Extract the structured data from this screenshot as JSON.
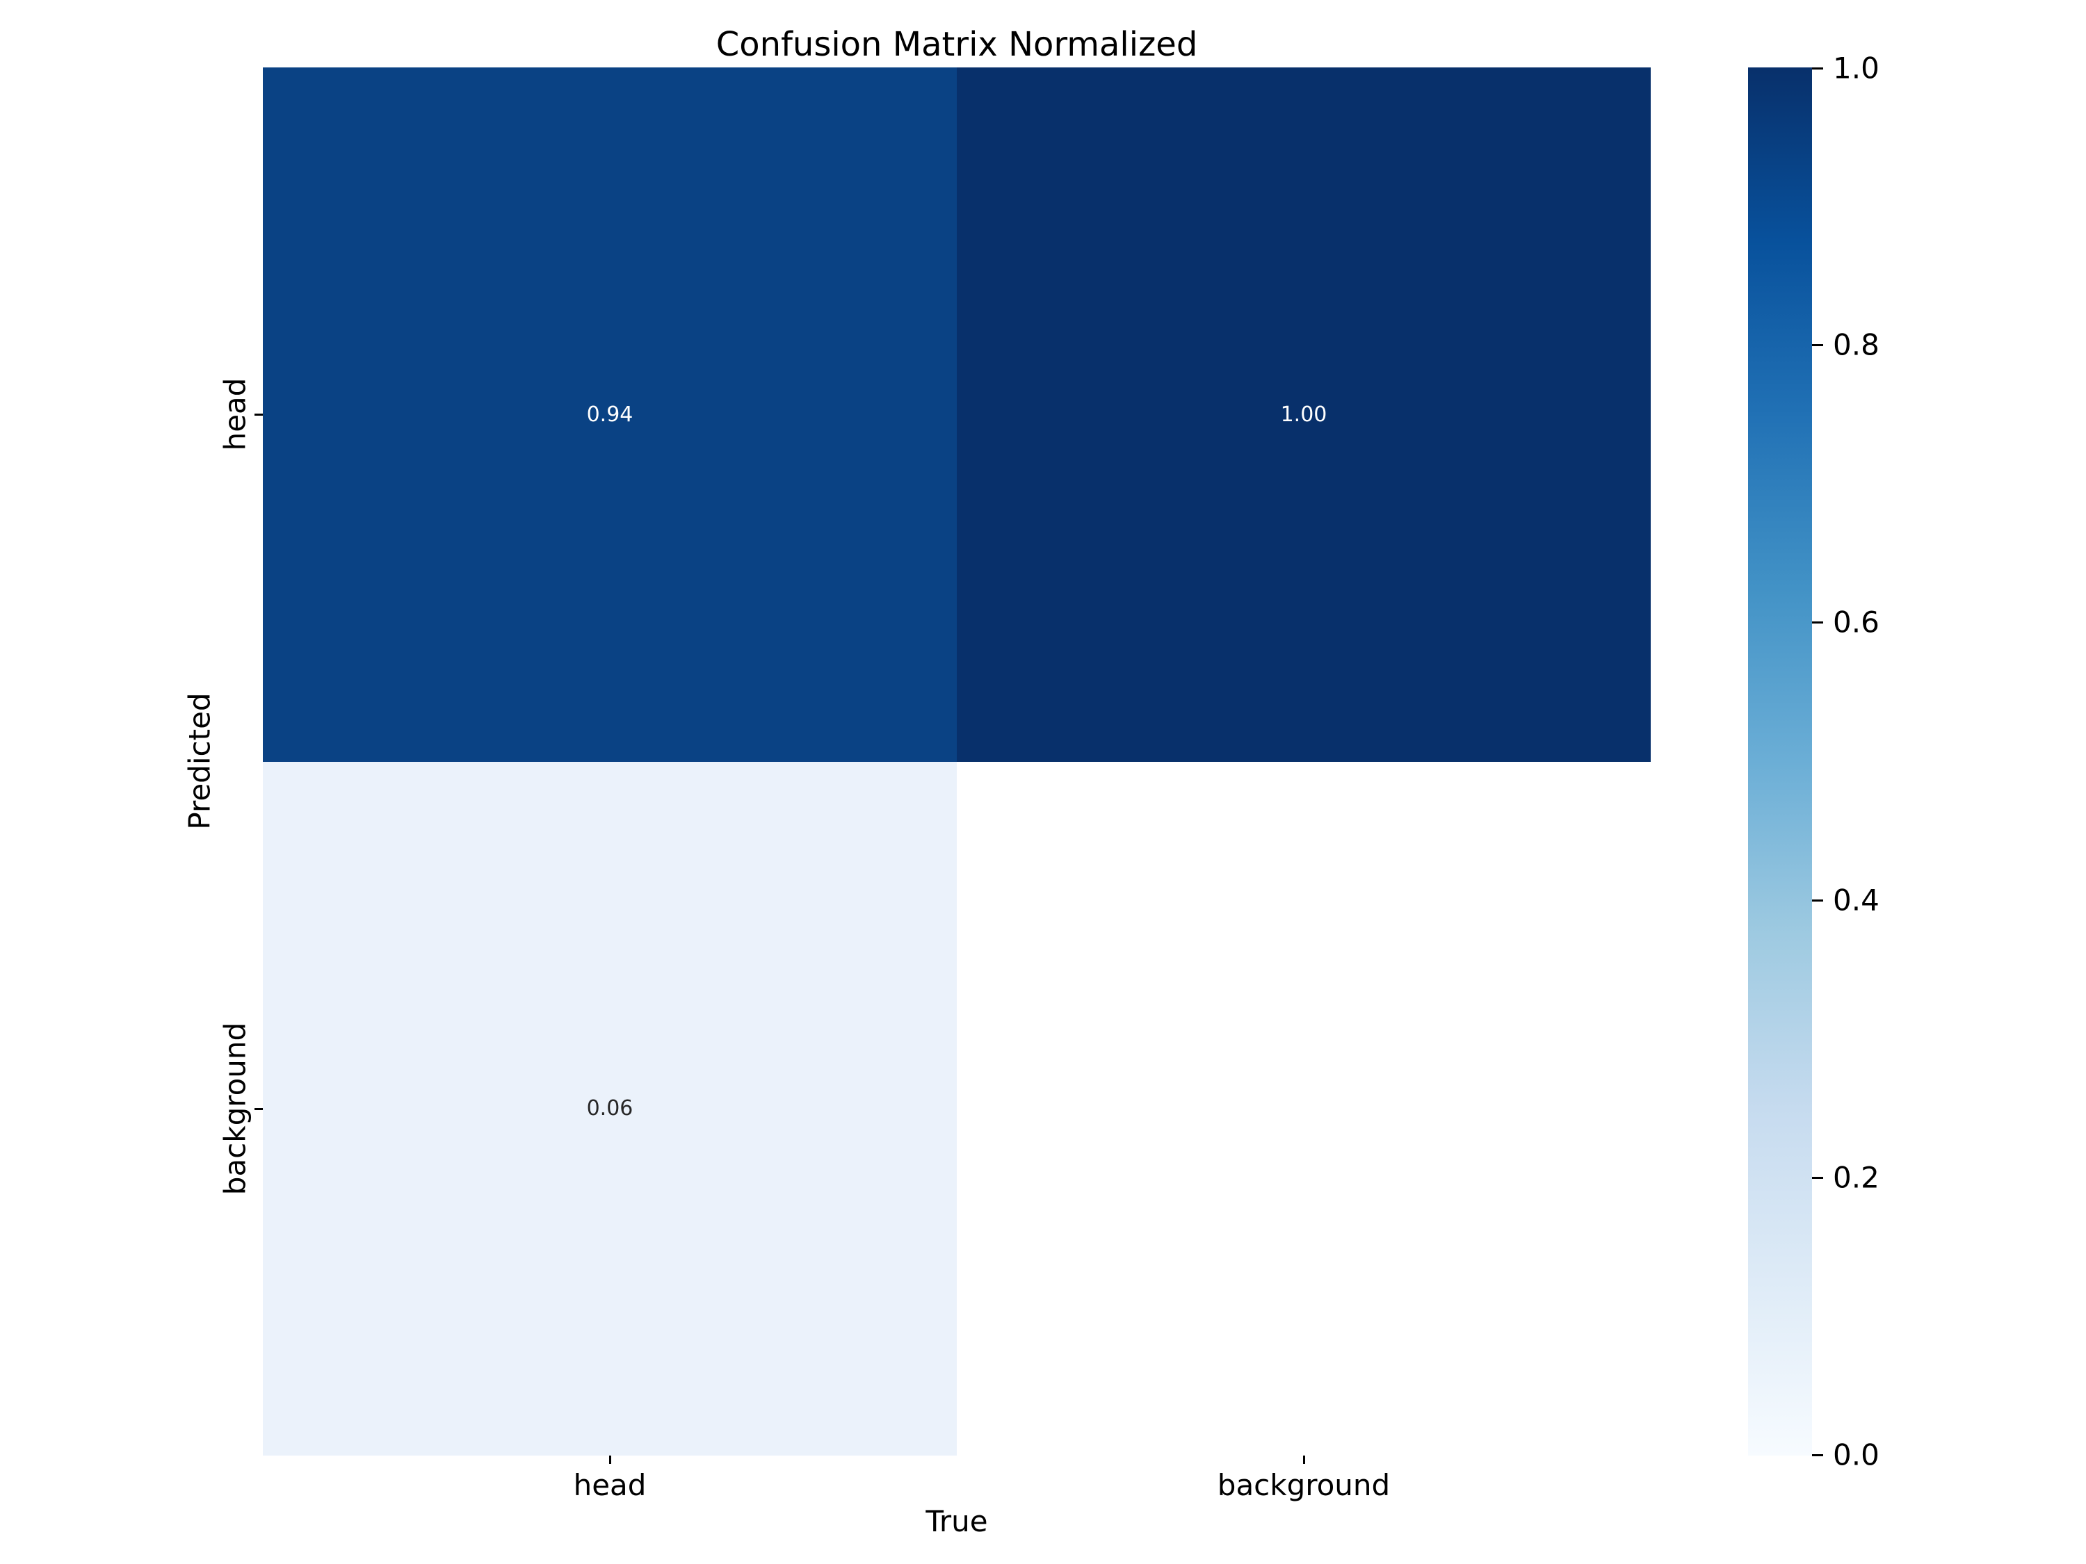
{
  "chart_data": {
    "type": "heatmap",
    "title": "Confusion Matrix Normalized",
    "xlabel": "True",
    "ylabel": "Predicted",
    "x_categories": [
      "head",
      "background"
    ],
    "y_categories": [
      "head",
      "background"
    ],
    "values": [
      [
        0.94,
        1.0
      ],
      [
        0.06,
        null
      ]
    ],
    "cell_labels": [
      [
        "0.94",
        "1.00"
      ],
      [
        "0.06",
        ""
      ]
    ],
    "cell_colors": [
      [
        "#0a4284",
        "#08306b"
      ],
      [
        "#ebf2fb",
        "#ffffff"
      ]
    ],
    "cell_text_colors": [
      [
        "#ffffff",
        "#ffffff"
      ],
      [
        "#262626",
        "#262626"
      ]
    ],
    "colormap": "Blues",
    "grid": false,
    "colorbar": {
      "position": "right",
      "vmin": 0.0,
      "vmax": 1.0,
      "tick_labels": [
        "1.0",
        "0.8",
        "0.6",
        "0.4",
        "0.2",
        "0.0"
      ],
      "gradient_stops": [
        "#08306b",
        "#08519c",
        "#2171b5",
        "#4292c6",
        "#6baed6",
        "#9ecae1",
        "#c6dbef",
        "#deebf7",
        "#f7fbff"
      ]
    }
  }
}
